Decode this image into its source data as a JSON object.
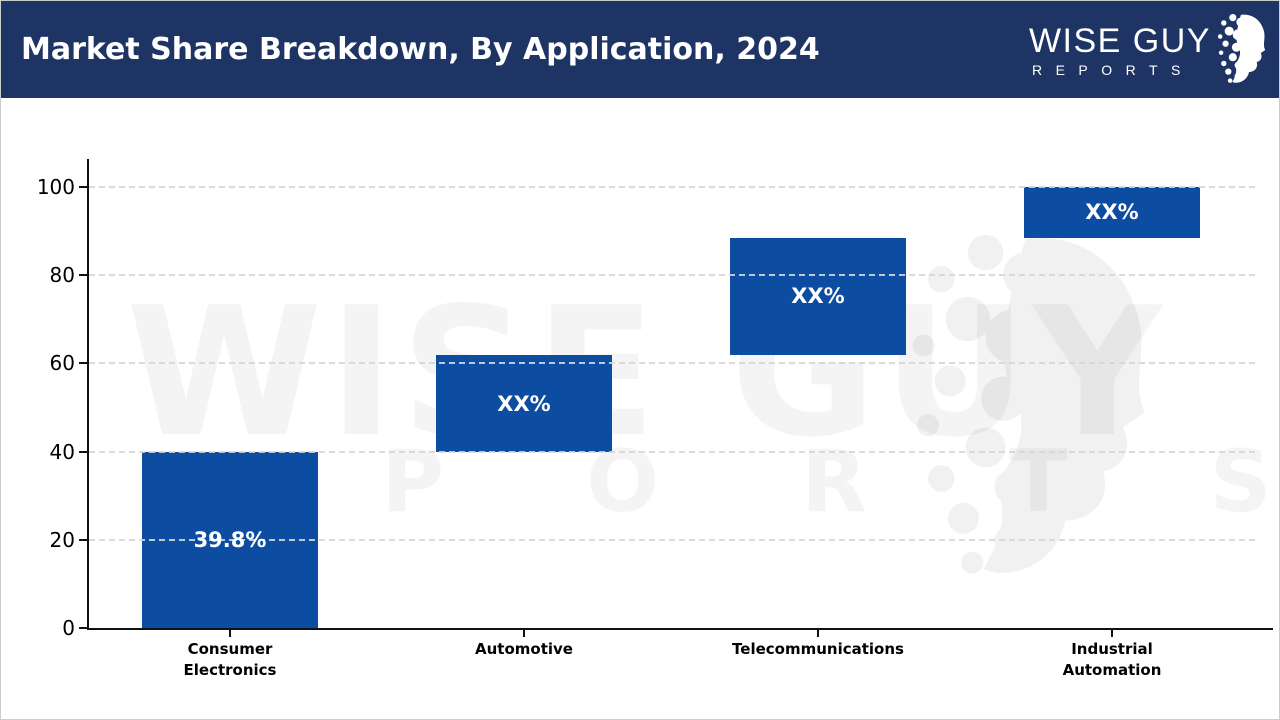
{
  "header": {
    "title": "Market Share Breakdown, By Application, 2024",
    "bg_color": "#1e3465",
    "brand": {
      "line1": "WISE GUY",
      "line2": "REPORTS"
    }
  },
  "watermark": {
    "line1": "WISE GUY",
    "line2": "P O R T S"
  },
  "chart_data": {
    "type": "bar",
    "subtype": "waterfall",
    "title": "Market Share Breakdown, By Application, 2024",
    "bar_color": "#0c4da2",
    "grid": "horizontal dashed",
    "legend": "none",
    "ylim": [
      0,
      105
    ],
    "y_ticks": [
      0,
      20,
      40,
      60,
      80,
      100
    ],
    "categories": [
      {
        "name": "Consumer Electronics",
        "lines": [
          "Consumer",
          "Electronics"
        ]
      },
      {
        "name": "Automotive",
        "lines": [
          "Automotive"
        ]
      },
      {
        "name": "Telecommunications",
        "lines": [
          "Telecommunications"
        ]
      },
      {
        "name": "Industrial Automation",
        "lines": [
          "Industrial",
          "Automation"
        ]
      }
    ],
    "segments": [
      {
        "category": "Consumer Electronics",
        "start": 0,
        "end": 39.8,
        "label": "39.8%"
      },
      {
        "category": "Automotive",
        "start": 39.8,
        "end": 62.0,
        "label": "XX%"
      },
      {
        "category": "Telecommunications",
        "start": 62.0,
        "end": 88.5,
        "label": "XX%"
      },
      {
        "category": "Industrial Automation",
        "start": 88.5,
        "end": 100.0,
        "label": "XX%"
      }
    ]
  }
}
